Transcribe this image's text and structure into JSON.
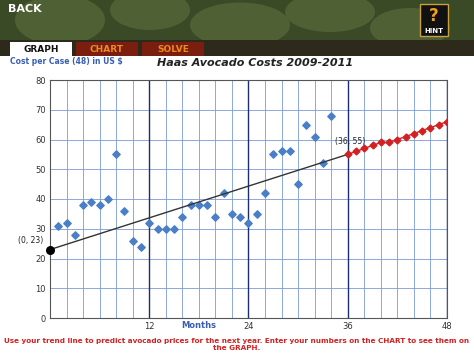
{
  "screen": {
    "back_button": "BACK",
    "hint_icon": "?",
    "hint_button": "HINT",
    "tabs": [
      "GRAPH",
      "CHART",
      "SOLVE"
    ],
    "instruction": "Use your trend line to predict avocado prices for the next year. Enter your numbers on the CHART to see them on the GRAPH."
  },
  "chart_data": {
    "type": "scatter",
    "title": "Haas Avocado Costs 2009-2011",
    "y_label": "Cost per Case (48) in US $",
    "x_label": "Months",
    "xlim": [
      0,
      48
    ],
    "xticks": [
      12,
      24,
      36,
      48
    ],
    "ylim": [
      0,
      80
    ],
    "yticks": [
      0,
      10,
      20,
      30,
      40,
      50,
      60,
      70,
      80
    ],
    "grid": true,
    "series": [
      {
        "type": "scatter",
        "color": "#4a7fc8",
        "marker": "diamond",
        "x": [
          1,
          2,
          3,
          4,
          5,
          6,
          7,
          8,
          9,
          10,
          11,
          12,
          13,
          14,
          15,
          16,
          17,
          18,
          19,
          20,
          21,
          22,
          23,
          24,
          25,
          26,
          27,
          28,
          29,
          30,
          31,
          32,
          33,
          34
        ],
        "values": [
          31,
          32,
          28,
          38,
          39,
          38,
          40,
          55,
          36,
          26,
          24,
          32,
          30,
          30,
          30,
          34,
          38,
          38,
          38,
          34,
          42,
          35,
          34,
          32,
          35,
          42,
          55,
          56,
          56,
          45,
          65,
          61,
          52,
          68
        ]
      },
      {
        "type": "line",
        "color": "#333333",
        "marker": "none",
        "line_style": "solid",
        "x": [
          0,
          36
        ],
        "values": [
          23,
          55
        ]
      },
      {
        "type": "line",
        "color": "#d42020",
        "marker": "diamond",
        "line_style": "solid",
        "x": [
          36,
          37,
          38,
          39,
          40,
          41,
          42,
          43,
          44,
          45,
          46,
          47,
          48
        ],
        "values": [
          55,
          56,
          57,
          58,
          59,
          59,
          60,
          61,
          62,
          63,
          64,
          65,
          66
        ]
      }
    ],
    "annotations": [
      {
        "text": "(0, 23)",
        "x": 0,
        "y": 23,
        "color": "#000000"
      },
      {
        "text": "(36, 55)",
        "x": 36,
        "y": 55
      }
    ]
  }
}
